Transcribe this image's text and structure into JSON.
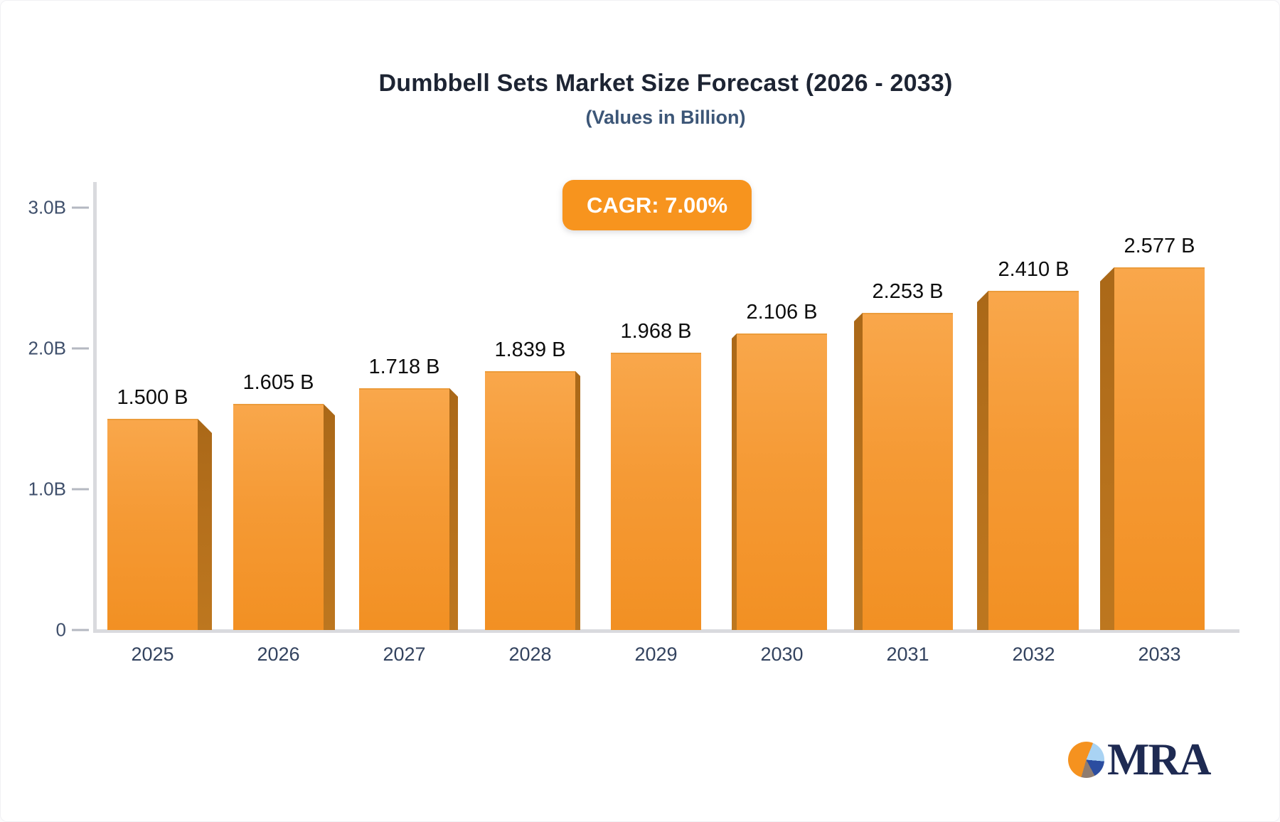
{
  "header": {
    "title": "Dumbbell Sets Market Size Forecast (2026 - 2033)",
    "subtitle": "(Values in Billion)"
  },
  "chart_data": {
    "type": "bar",
    "title": "Dumbbell Sets Market Size Forecast (2026 - 2033)",
    "subtitle": "(Values in Billion)",
    "cagr_badge": "CAGR: 7.00%",
    "categories": [
      "2025",
      "2026",
      "2027",
      "2028",
      "2029",
      "2030",
      "2031",
      "2032",
      "2033"
    ],
    "values": [
      1.5,
      1.605,
      1.718,
      1.839,
      1.968,
      2.106,
      2.253,
      2.41,
      2.577
    ],
    "value_labels": [
      "1.500 B",
      "1.605 B",
      "1.718 B",
      "1.839 B",
      "1.968 B",
      "2.106 B",
      "2.253 B",
      "2.410 B",
      "2.577 B"
    ],
    "unit": "Billion",
    "ylim": [
      0,
      3.0
    ],
    "yticks": [
      {
        "value": 3.0,
        "label": "3.0B"
      },
      {
        "value": 2.0,
        "label": "2.0B"
      },
      {
        "value": 1.0,
        "label": "1.0B"
      },
      {
        "value": 0.0,
        "label": "0"
      }
    ],
    "grid": false,
    "legend": "none",
    "colors": {
      "bar_face_top": "#f9a74b",
      "bar_face_bottom": "#f29023",
      "bar_side": "#b5701c",
      "badge": "#f7941e",
      "axis_line": "#d9dade",
      "tick_dash": "#b4b8c1",
      "axis_text": "#3f4f6b",
      "category_text": "#33435f",
      "value_text": "#0d0d0d",
      "title_text": "#1d2433",
      "subtitle_text": "#3c5677"
    }
  },
  "logo": {
    "text": "MRA",
    "pie_colors": {
      "orange": "#f5921f",
      "light_blue": "#a9d3f3",
      "dark_blue": "#2b4da0",
      "taupe": "#8f7c70"
    },
    "text_color": "#1e2a52"
  }
}
